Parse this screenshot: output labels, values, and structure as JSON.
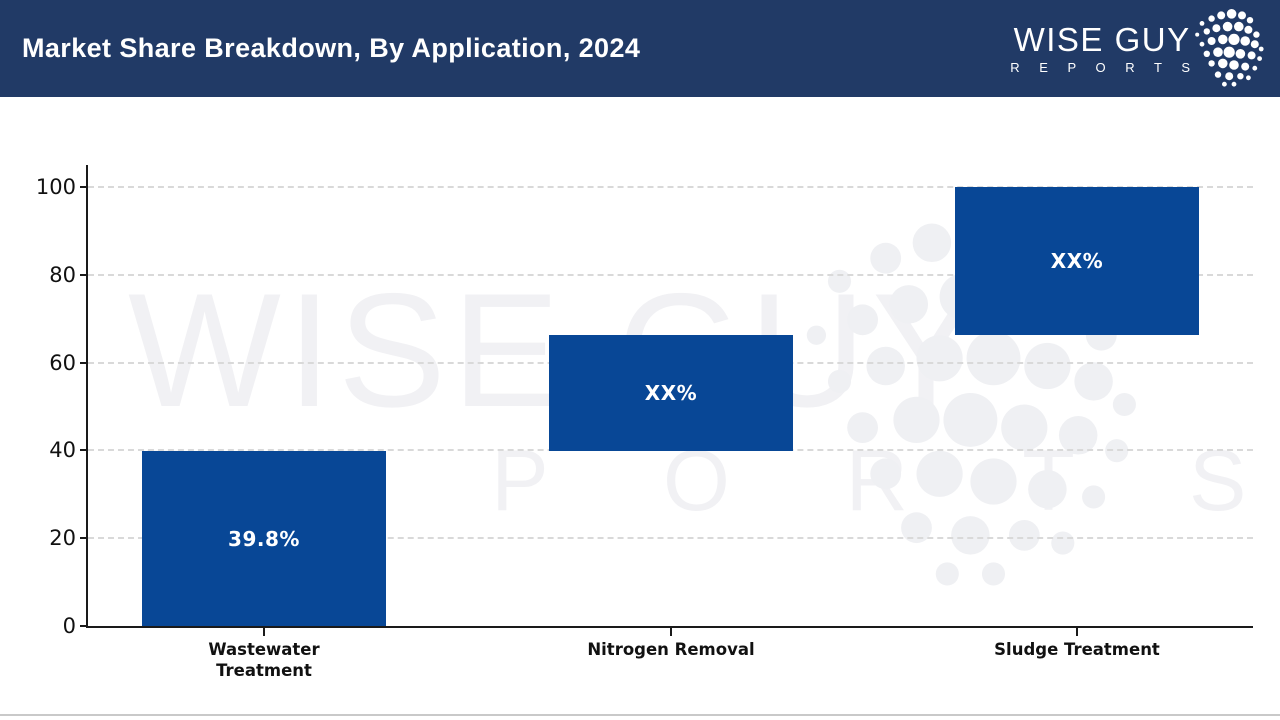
{
  "header": {
    "title": "Market Share Breakdown, By Application, 2024",
    "background_color": "#213a66",
    "text_color": "#ffffff",
    "logo": {
      "line1": "WISE GUY",
      "line2": "R E P O R T S",
      "face_icon": "dotted-face-profile"
    }
  },
  "watermark": {
    "line1": "WISE GUY",
    "line2": "R E P O R T S",
    "color": "#f1f1f4"
  },
  "chart_data": {
    "type": "bar",
    "subtype": "waterfall",
    "title": "Market Share Breakdown, By Application, 2024",
    "categories": [
      [
        "Wastewater",
        "Treatment"
      ],
      [
        "Nitrogen Removal"
      ],
      [
        "Sludge Treatment"
      ]
    ],
    "segments": [
      {
        "category": "Wastewater Treatment",
        "base": 0,
        "top": 39.8,
        "label": "39.8%"
      },
      {
        "category": "Nitrogen Removal",
        "base": 39.8,
        "top": 66.3,
        "label": "XX%"
      },
      {
        "category": "Sludge Treatment",
        "base": 66.3,
        "top": 100,
        "label": "XX%"
      }
    ],
    "ylim": [
      0,
      100
    ],
    "yticks": [
      0,
      20,
      40,
      60,
      80,
      100
    ],
    "xlabel": "",
    "ylabel": "",
    "grid": "horizontal-dashed",
    "legend": "none",
    "bar_color": "#084796",
    "bar_label_color": "#ffffff",
    "gridline_color": "#d9d9d9",
    "axis_color": "#1a1a1a"
  }
}
